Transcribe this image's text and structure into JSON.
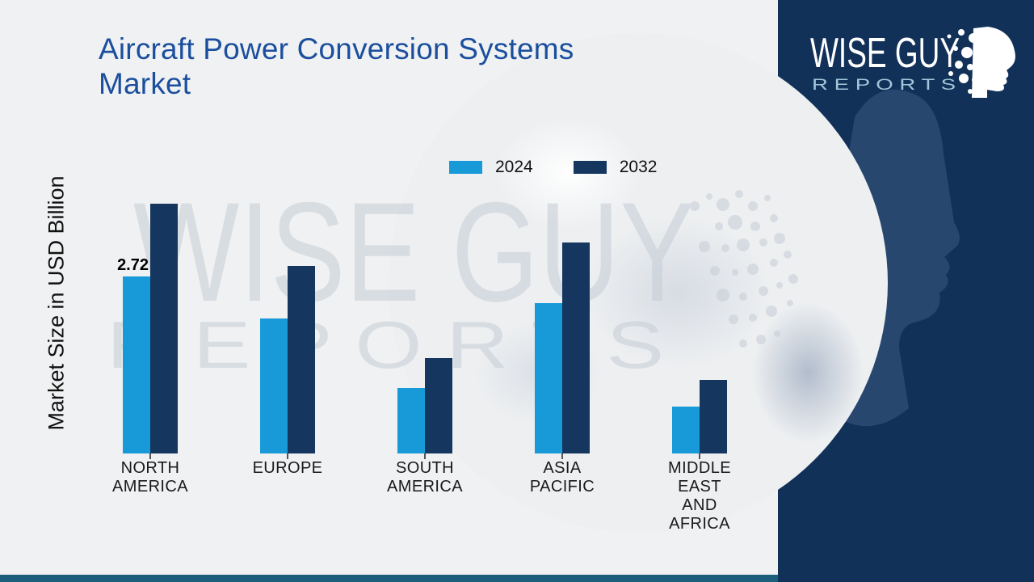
{
  "title": "Aircraft Power Conversion Systems Market",
  "brand": {
    "wordmark_top": "WISE GUY",
    "wordmark_bottom": "R E P O R T S"
  },
  "watermark": {
    "line1": "WISE GUY",
    "line2": "R E P O R T S"
  },
  "chart_data": {
    "type": "bar",
    "title": "Aircraft Power Conversion Systems Market",
    "xlabel": "",
    "ylabel": "Market Size in USD Billion",
    "ylim": [
      0,
      4.3
    ],
    "grid": false,
    "legend_position": "top",
    "categories": [
      "NORTH AMERICA",
      "EUROPE",
      "SOUTH AMERICA",
      "ASIA PACIFIC",
      "MIDDLE EAST AND AFRICA"
    ],
    "label_lines": [
      "NORTH\nAMERICA",
      "EUROPE",
      "SOUTH\nAMERICA",
      "ASIA\nPACIFIC",
      "MIDDLE\nEAST\nAND\nAFRICA"
    ],
    "series": [
      {
        "name": "2024",
        "color": "#189ad9",
        "values": [
          2.72,
          2.07,
          1.01,
          2.31,
          0.72
        ]
      },
      {
        "name": "2032",
        "color": "#15365f",
        "values": [
          3.84,
          2.88,
          1.47,
          3.24,
          1.13
        ]
      }
    ],
    "annotation": {
      "text": "2.72",
      "category_index": 0,
      "series_index": 0
    }
  },
  "colors": {
    "background": "#f0f1f2",
    "title": "#1b4f9e",
    "bar_2024": "#189ad9",
    "bar_2032": "#15365f",
    "panel_navy": "#123158",
    "accent_bar": "#1b5f7d",
    "watermark_gray": "#c6cdd6",
    "logo_reports_blue": "#9ec7da"
  }
}
